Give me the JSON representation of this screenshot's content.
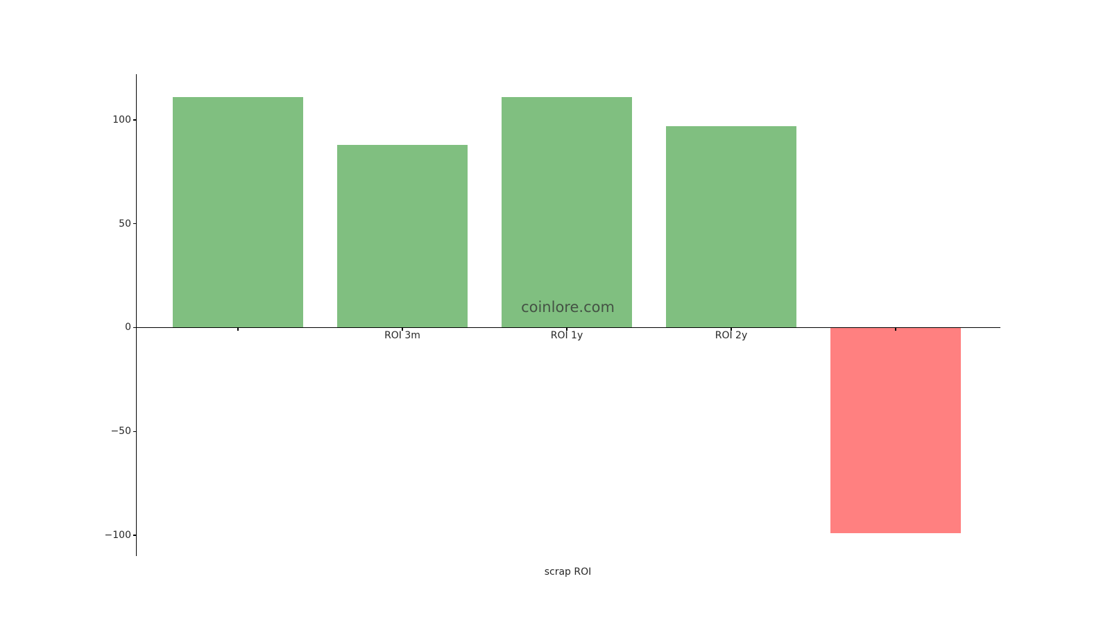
{
  "page": {
    "background": "#ffffff"
  },
  "chart_data": {
    "type": "bar",
    "title": "",
    "xlabel": "scrap ROI",
    "ylabel": "",
    "watermark": "coinlore.com",
    "categories": [
      "",
      "ROI 3m",
      "ROI 1y",
      "ROI 2y",
      ""
    ],
    "values": [
      111,
      88,
      111,
      97,
      -99
    ],
    "series": [
      {
        "name": "scrap ROI",
        "values": [
          111,
          88,
          111,
          97,
          -99
        ]
      }
    ],
    "colors": {
      "positive_bar": "#80BF80",
      "negative_bar": "#FF8080",
      "axis": "#000000",
      "tick_label": "#262626",
      "watermark": "#333333"
    },
    "yticks": [
      100,
      50,
      0,
      -50,
      -100
    ],
    "ytick_labels": [
      "100",
      "50",
      "0",
      "−50",
      "−100"
    ],
    "ylim": [
      -110,
      122
    ],
    "grid": false,
    "legend": false
  }
}
